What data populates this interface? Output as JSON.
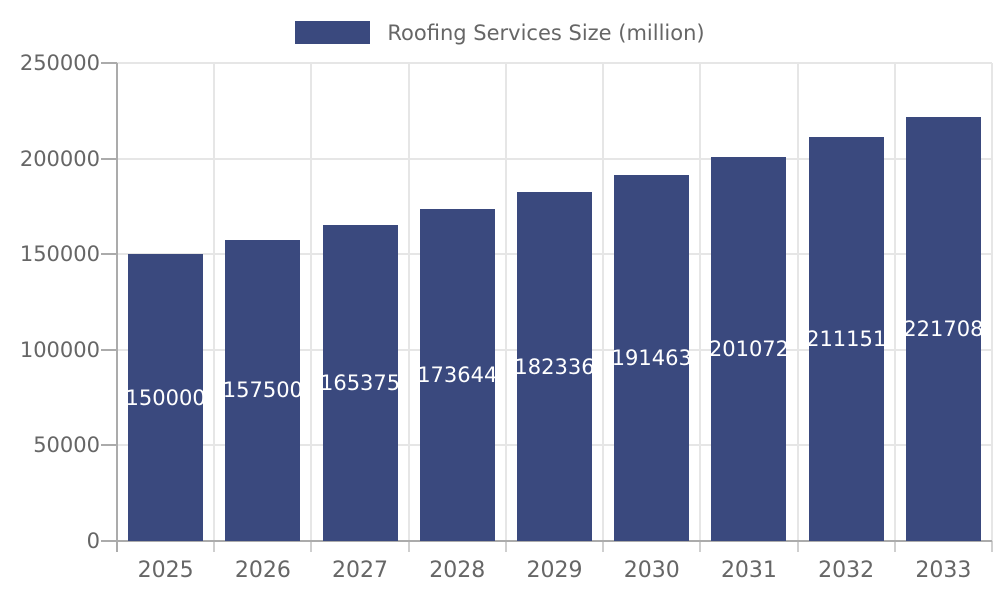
{
  "chart_data": {
    "type": "bar",
    "title": "Roofing Services Size (million)",
    "legend": {
      "position": "top",
      "label": "Roofing Services Size (million)"
    },
    "categories": [
      "2025",
      "2026",
      "2027",
      "2028",
      "2029",
      "2030",
      "2031",
      "2032",
      "2033"
    ],
    "series": [
      {
        "name": "Roofing Services Size (million)",
        "values": [
          150000,
          157500,
          165375,
          173644,
          182336,
          191463,
          201072,
          211151,
          221708
        ]
      }
    ],
    "bar_value_labels": [
      "150000",
      "157500",
      "165375",
      "173644",
      "182336",
      "191463",
      "201072",
      "211151",
      "221708"
    ],
    "xlabel": "",
    "ylabel": "",
    "ylim": [
      0,
      250000
    ],
    "yticks": [
      0,
      50000,
      100000,
      150000,
      200000,
      250000
    ],
    "grid": true,
    "colors": {
      "bar": "#3A497E",
      "bar_value_text": "#ffffff",
      "axis": "#ababab",
      "gridline": "#e6e6e6",
      "tick_text": "#666666",
      "legend_text": "#666666",
      "background": "#ffffff"
    }
  }
}
